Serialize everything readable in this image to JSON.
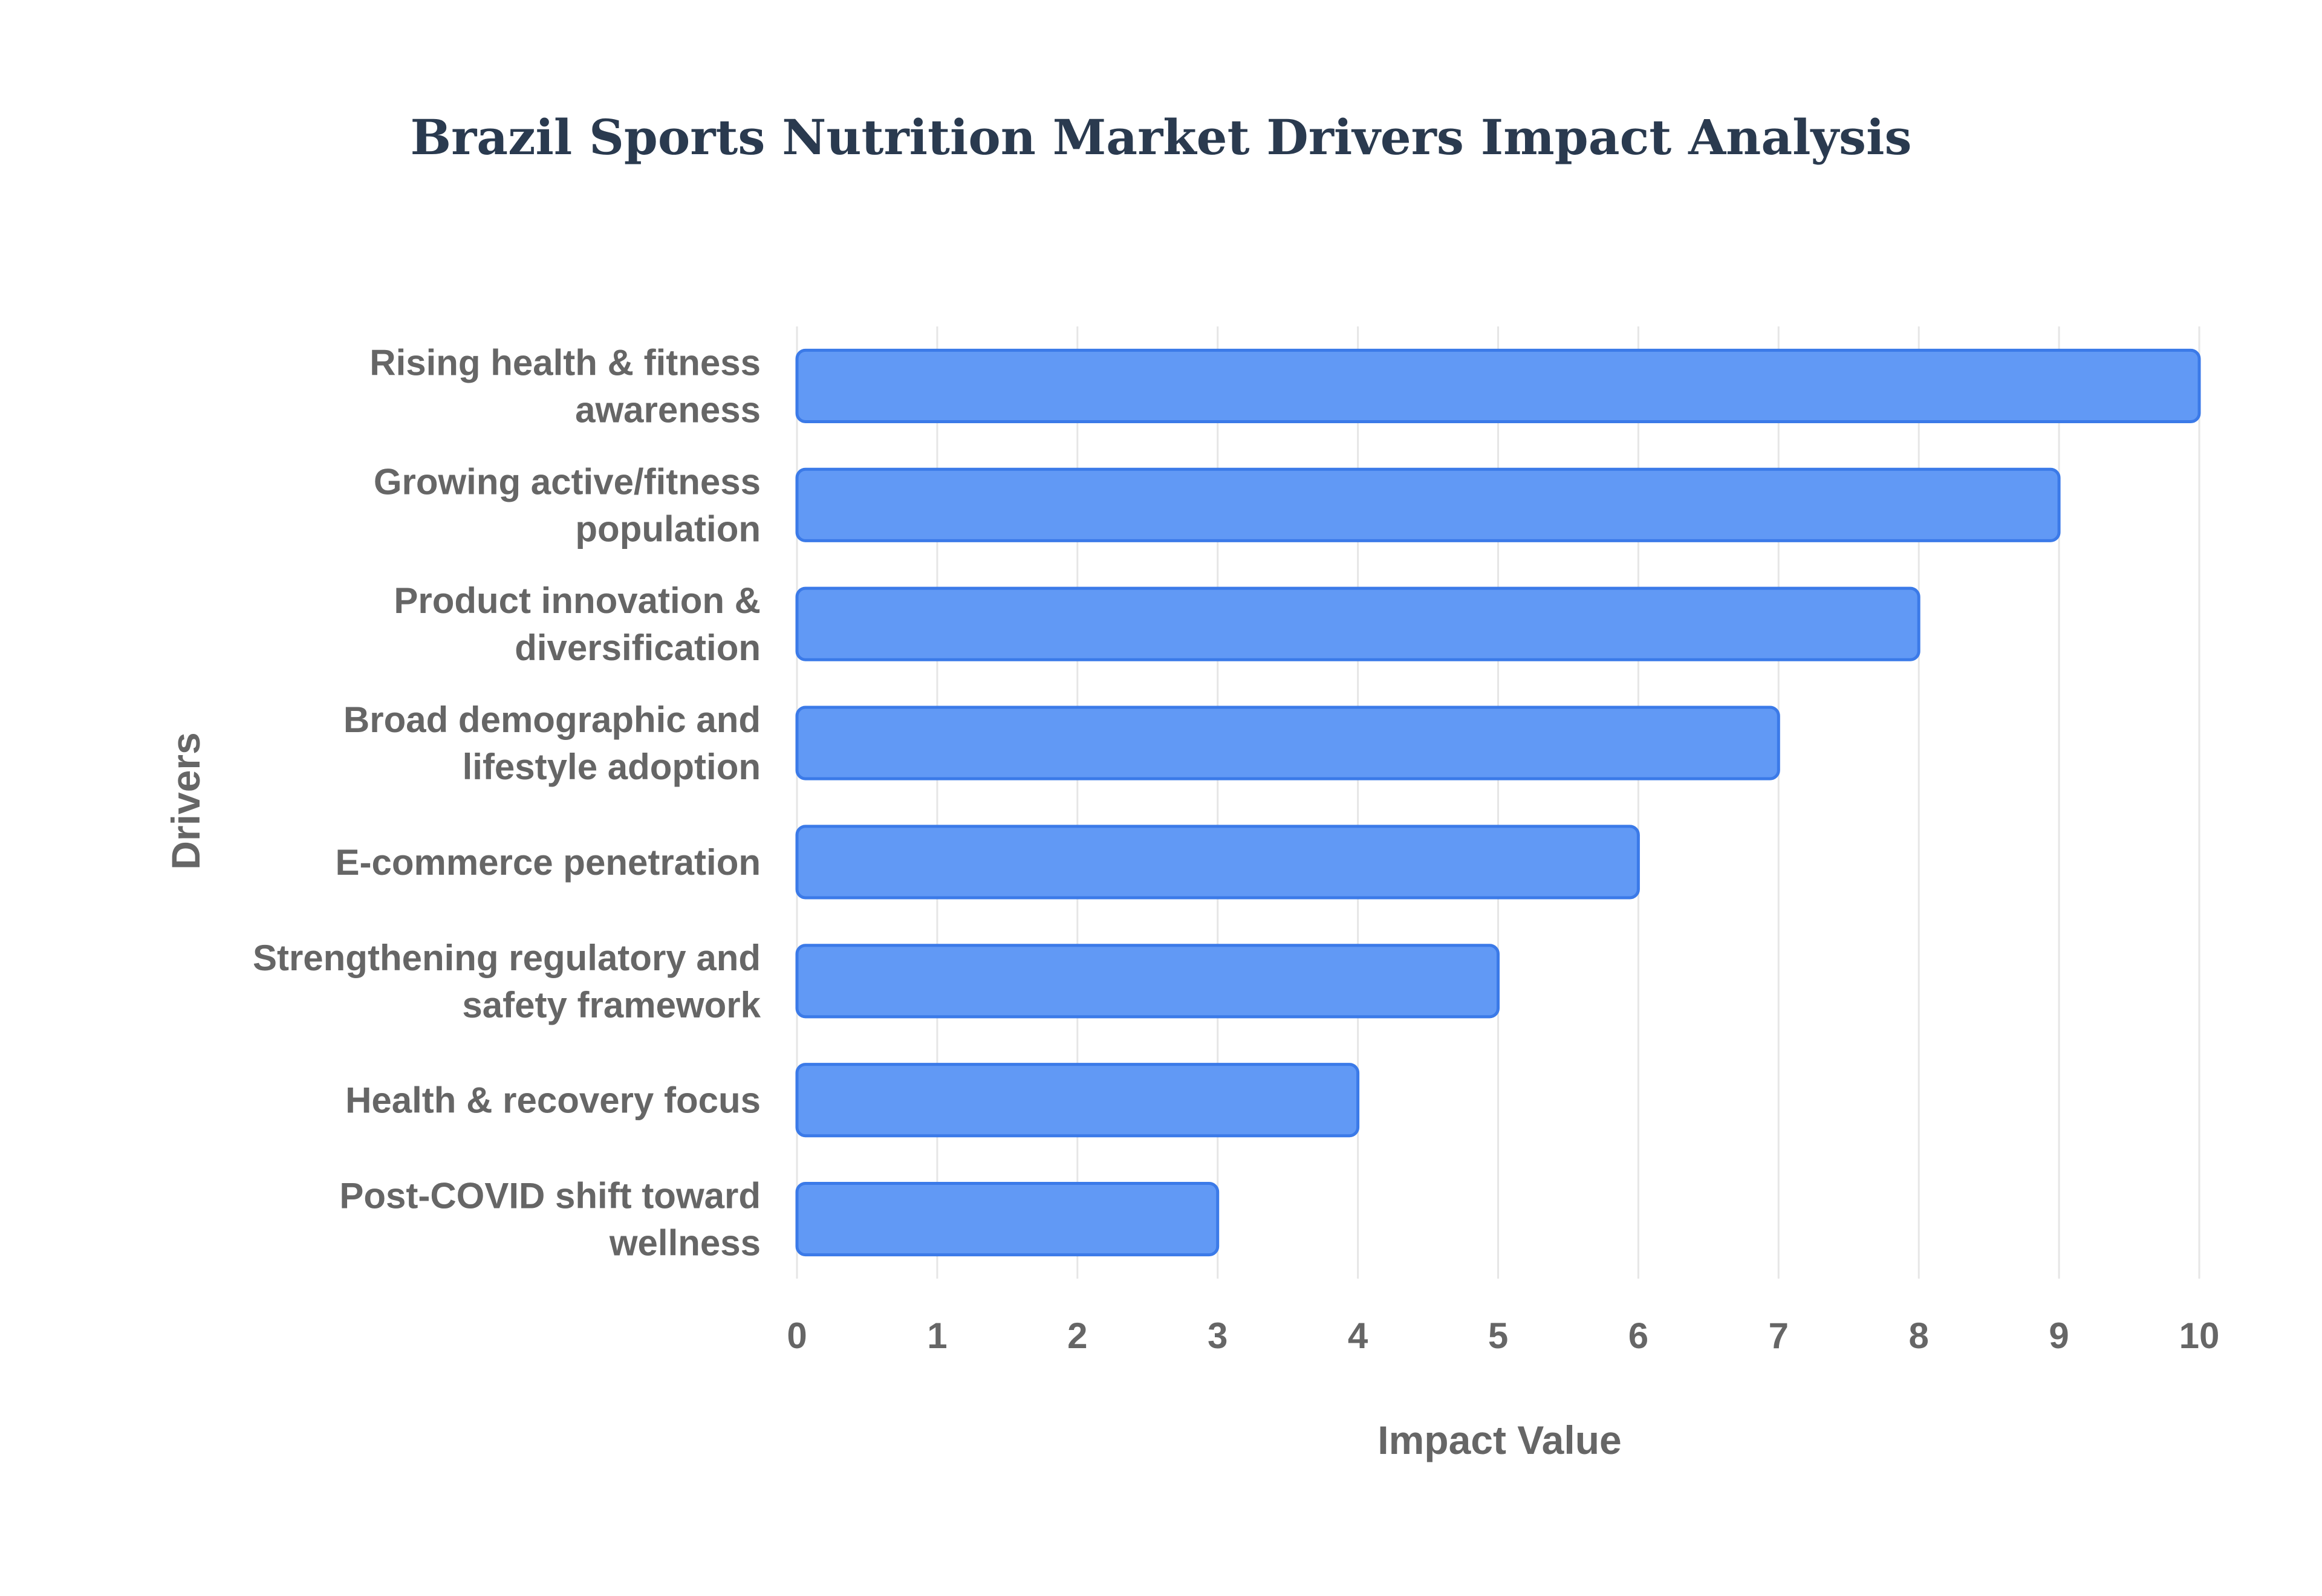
{
  "chart_data": {
    "type": "bar",
    "orientation": "horizontal",
    "title": "Brazil Sports Nutrition Market Drivers Impact Analysis",
    "xlabel": "Impact Value",
    "ylabel": "Drivers",
    "xlim": [
      0,
      10
    ],
    "ticks": [
      "0",
      "1",
      "2",
      "3",
      "4",
      "5",
      "6",
      "7",
      "8",
      "9",
      "10"
    ],
    "grid": true,
    "legend": "none",
    "bar_color": "#6199f5",
    "bar_edge_color": "#3b7ae8",
    "categories": [
      [
        "Rising health & fitness",
        "awareness"
      ],
      [
        "Growing active/fitness",
        "population"
      ],
      [
        "Product innovation &",
        "diversification"
      ],
      [
        "Broad demographic and",
        "lifestyle adoption"
      ],
      [
        "E-commerce penetration"
      ],
      [
        "Strengthening regulatory and",
        "safety framework"
      ],
      [
        "Health & recovery focus"
      ],
      [
        "Post-COVID shift toward",
        "wellness"
      ]
    ],
    "values": [
      10,
      9,
      8,
      7,
      6,
      5,
      4,
      3
    ]
  }
}
